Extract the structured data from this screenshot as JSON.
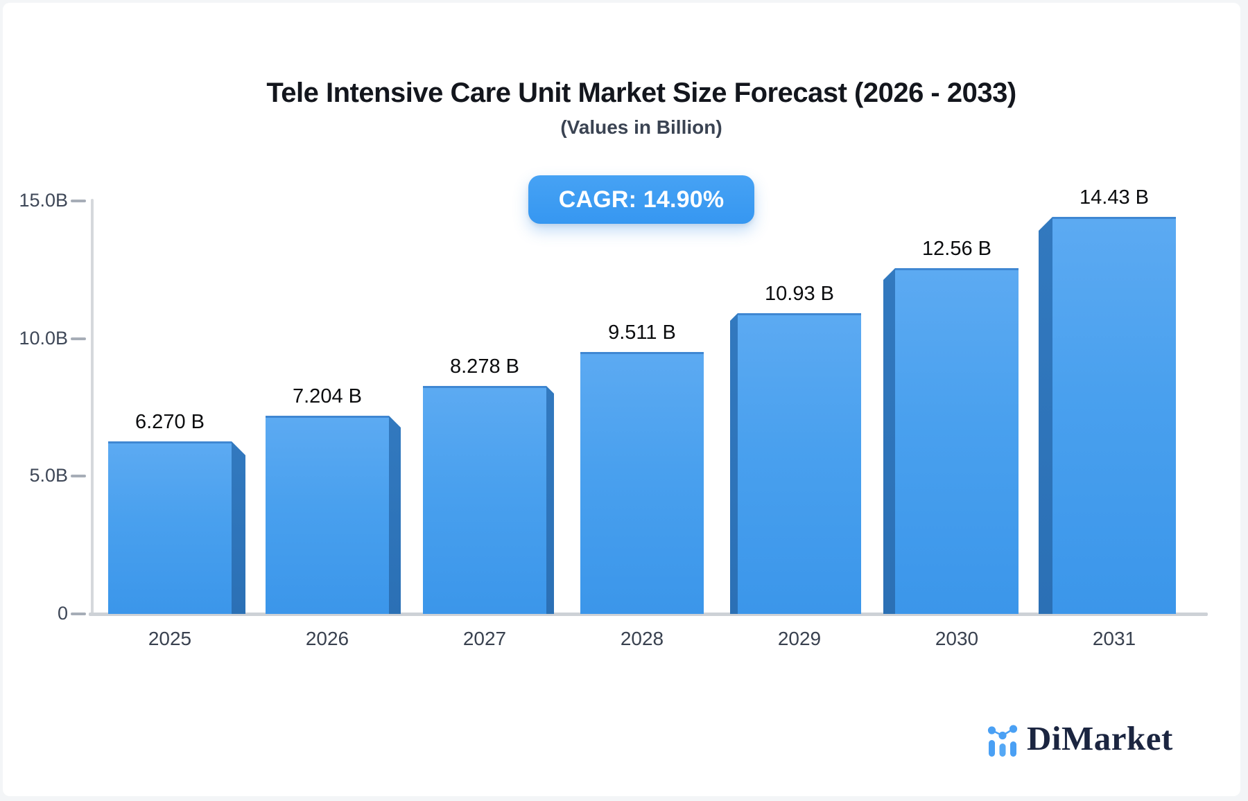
{
  "header": {
    "title": "Tele Intensive Care Unit Market Size Forecast (2026 - 2033)",
    "subtitle": "(Values in Billion)",
    "cagr_label": "CAGR: 14.90%"
  },
  "chart_data": {
    "type": "bar",
    "title": "Tele Intensive Care Unit Market Size Forecast (2026 - 2033)",
    "subtitle": "(Values in Billion)",
    "cagr": "14.90%",
    "categories": [
      "2025",
      "2026",
      "2027",
      "2028",
      "2029",
      "2030",
      "2031"
    ],
    "values": [
      6.27,
      7.204,
      8.278,
      9.511,
      10.93,
      12.56,
      14.43
    ],
    "value_labels": [
      "6.270 B",
      "7.204 B",
      "8.278 B",
      "9.511 B",
      "10.93 B",
      "12.56 B",
      "14.43 B"
    ],
    "xlabel": "",
    "ylabel": "",
    "ylim": [
      0,
      15
    ],
    "yticks": [
      {
        "label": "0",
        "value": 0
      },
      {
        "label": "5.0B",
        "value": 5
      },
      {
        "label": "10.0B",
        "value": 10
      },
      {
        "label": "15.0B",
        "value": 15
      }
    ],
    "grid": false,
    "legend": false,
    "style": "pseudo-3d bars, side faces angled toward center",
    "colors": {
      "bar_top": "#5caaf2",
      "bar_bottom": "#3b96ea",
      "bar_side": "#2d74b9",
      "bar_top_edge": "#3f87d2",
      "badge_background": "#3b9bf2",
      "axis_line": "#d5d8dc",
      "axis_label": "#3e4757",
      "value_label": "#0b0c0e"
    }
  },
  "footer": {
    "brand": "DiMarket"
  }
}
